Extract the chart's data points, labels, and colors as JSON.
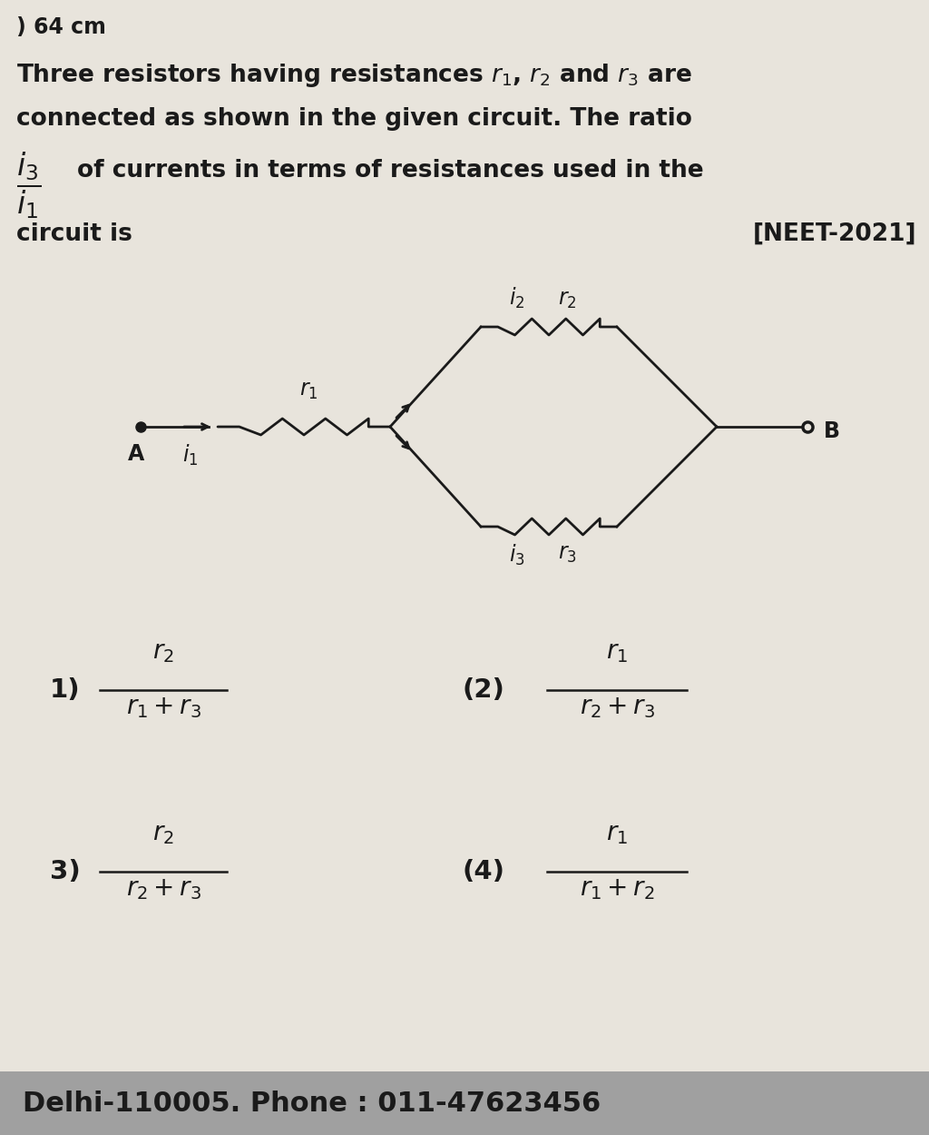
{
  "paper_color": "#e8e4dc",
  "text_color": "#1a1a1a",
  "header_top": ") 64 cm",
  "line1": "Three resistors having resistances $r_1$, $r_2$ and $r_3$ are",
  "line2": "connected as shown in the given circuit. The ratio",
  "line3_text": "of currents in terms of resistances used in the",
  "line4": "circuit is",
  "neet_tag": "[NEET-2021]",
  "footer": "Delhi-110005. Phone : 011-47623456",
  "footer_bg": "#a0a0a0",
  "lw": 2.0
}
